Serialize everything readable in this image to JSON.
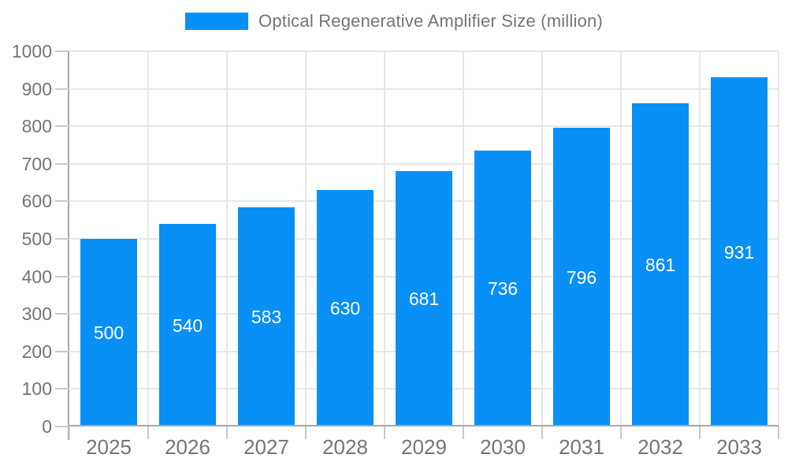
{
  "chart_data": {
    "type": "bar",
    "title": "Optical Regenerative Amplifier Size (million)",
    "categories": [
      "2025",
      "2026",
      "2027",
      "2028",
      "2029",
      "2030",
      "2031",
      "2032",
      "2033"
    ],
    "values": [
      500,
      540,
      583,
      630,
      681,
      736,
      796,
      861,
      931
    ],
    "xlabel": "",
    "ylabel": "",
    "ylim": [
      0,
      1000
    ],
    "ytick_step": 100,
    "grid": true,
    "legend_position": "top",
    "colors": {
      "bar": "#0890F6",
      "bar_label": "#FFFFFF",
      "grid_line": "#E7E7E7",
      "axis_line": "#A8A8A8",
      "tick_line": "#C9C9C9",
      "text": "#757575",
      "background": "#FFFFFF"
    }
  }
}
